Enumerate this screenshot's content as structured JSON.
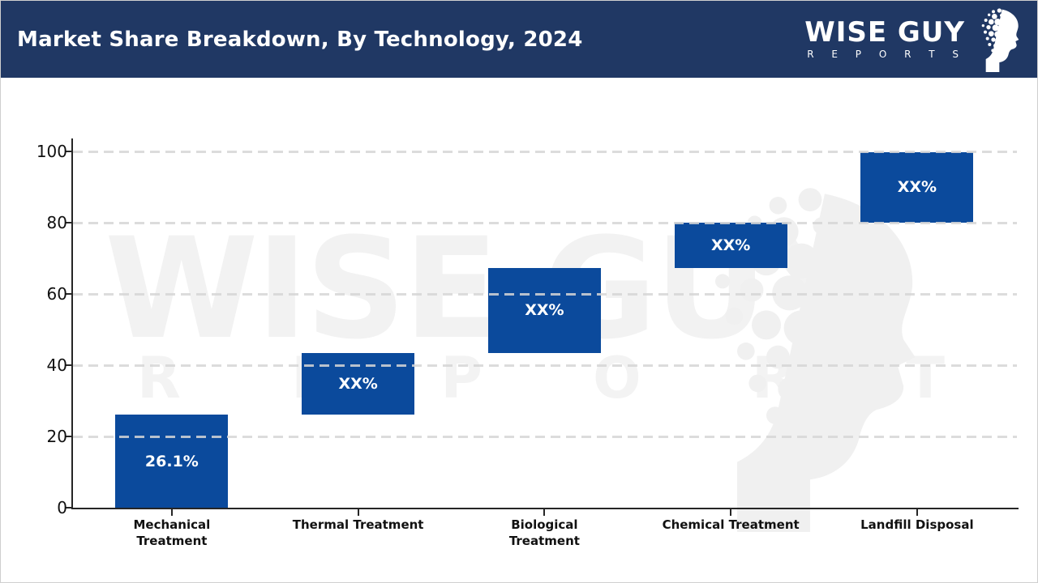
{
  "header": {
    "title": "Market Share Breakdown, By Technology, 2024",
    "logo": {
      "line1": "WISE GUY",
      "line2": "R E P O R T S"
    }
  },
  "watermark": {
    "line1": "WISE GUY",
    "line2": "R E P O R T S"
  },
  "chart_data": {
    "type": "bar",
    "subtype": "waterfall",
    "title": "Market Share Breakdown, By Technology, 2024",
    "categories": [
      "Mechanical Treatment",
      "Thermal Treatment",
      "Biological Treatment",
      "Chemical Treatment",
      "Landfill Disposal"
    ],
    "category_lines": [
      [
        "Mechanical",
        "Treatment"
      ],
      [
        "Thermal Treatment"
      ],
      [
        "Biological",
        "Treatment"
      ],
      [
        "Chemical Treatment"
      ],
      [
        "Landfill Disposal"
      ]
    ],
    "segments": [
      {
        "name": "Mechanical Treatment",
        "start": 0,
        "end": 26.1,
        "label": "26.1%"
      },
      {
        "name": "Thermal Treatment",
        "start": 26.1,
        "end": 43.4,
        "label": "XX%"
      },
      {
        "name": "Biological Treatment",
        "start": 43.4,
        "end": 67.3,
        "label": "XX%"
      },
      {
        "name": "Chemical Treatment",
        "start": 67.3,
        "end": 80.0,
        "label": "XX%"
      },
      {
        "name": "Landfill Disposal",
        "start": 80.0,
        "end": 99.8,
        "label": "XX%"
      }
    ],
    "yticks": [
      0,
      20,
      40,
      60,
      80,
      100
    ],
    "ylim": [
      0,
      104
    ],
    "xlabel": "",
    "ylabel": "",
    "grid": "horizontal-dashed-over-bars",
    "legend": "none",
    "bar_color": "#0b4a9c",
    "bar_label_color": "#ffffff",
    "axis_color": "#262626",
    "header_color": "#203864"
  }
}
